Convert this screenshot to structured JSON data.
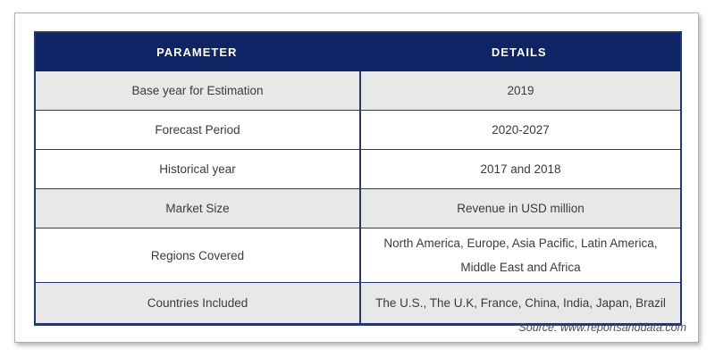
{
  "chart_data": {
    "type": "table",
    "columns": [
      "PARAMETER",
      "DETAILS"
    ],
    "rows": [
      [
        "Base year for Estimation",
        "2019"
      ],
      [
        "Forecast Period",
        "2020-2027"
      ],
      [
        "Historical year",
        "2017 and 2018"
      ],
      [
        "Market Size",
        "Revenue in USD million"
      ],
      [
        "Regions Covered",
        "North America, Europe, Asia Pacific, Latin America, Middle East and Africa"
      ],
      [
        "Countries Included",
        "The U.S., The  U.K, France, China, India, Japan, Brazil"
      ]
    ],
    "source": "Source: www.reportsanddata.com"
  },
  "colors": {
    "header_bg": "#0e2464",
    "row_shade": "#e9e8e8",
    "table_border": "#24386d",
    "text": "#3b3b3b",
    "source_text": "#4d4d4d"
  }
}
